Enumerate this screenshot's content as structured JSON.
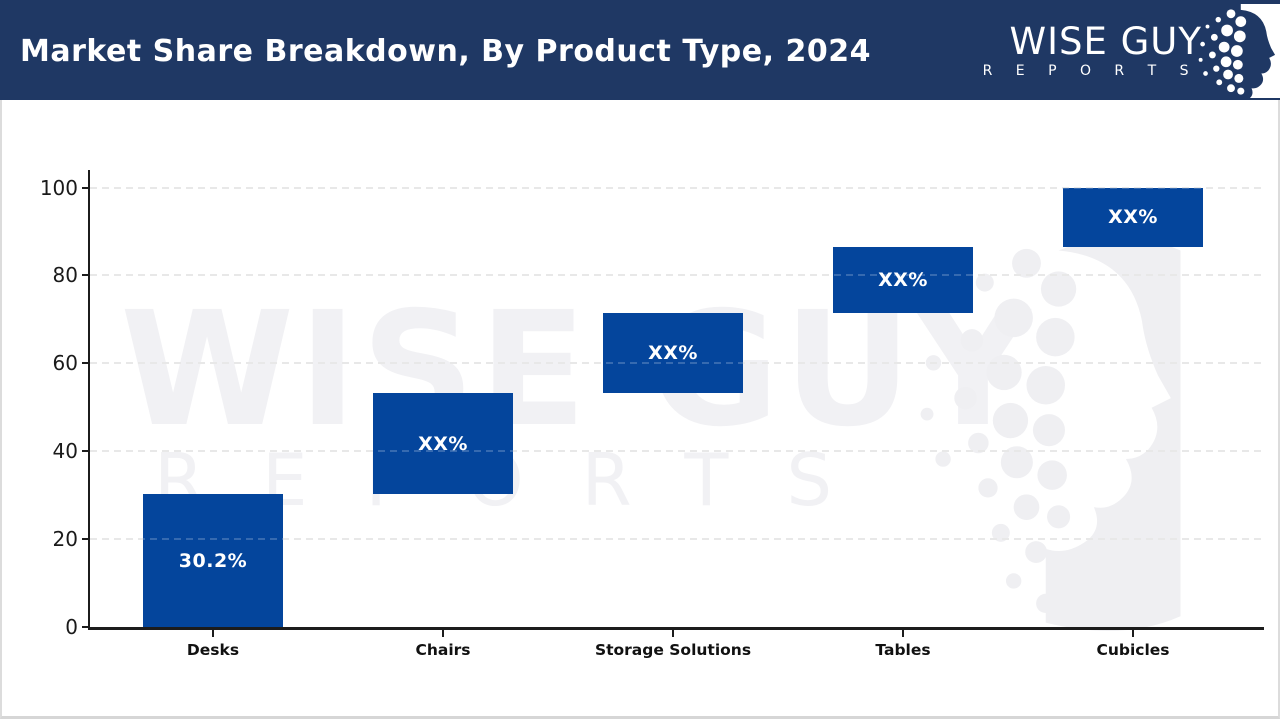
{
  "header": {
    "title": "Market Share Breakdown, By Product Type, 2024",
    "logo_line1": "WISE GUY",
    "logo_line2": "R E P O R T S"
  },
  "watermark": {
    "line1": "WISE GUY",
    "line2": "REPORTS"
  },
  "chart_data": {
    "type": "bar",
    "subtype": "waterfall",
    "title": "Market Share Breakdown, By Product Type, 2024",
    "categories": [
      "Desks",
      "Chairs",
      "Storage Solutions",
      "Tables",
      "Cubicles"
    ],
    "segments": [
      {
        "category": "Desks",
        "start": 0,
        "end": 30.2,
        "label": "30.2%"
      },
      {
        "category": "Chairs",
        "start": 30.2,
        "end": 53.2,
        "label": "XX%"
      },
      {
        "category": "Storage Solutions",
        "start": 53.2,
        "end": 71.4,
        "label": "XX%"
      },
      {
        "category": "Tables",
        "start": 71.4,
        "end": 86.4,
        "label": "XX%"
      },
      {
        "category": "Cubicles",
        "start": 86.4,
        "end": 100,
        "label": "XX%"
      }
    ],
    "ylim": [
      0,
      100
    ],
    "yticks": [
      0,
      20,
      40,
      60,
      80,
      100
    ],
    "grid": {
      "horizontal": true,
      "style": "dashed",
      "color": "#e2e2e2"
    },
    "legend": "none",
    "colors": {
      "bar": "#04459c",
      "bar_label": "#ffffff",
      "axis": "#1c1c1c",
      "header_bg": "#1f3864",
      "watermark": "#f1f1f4"
    }
  }
}
